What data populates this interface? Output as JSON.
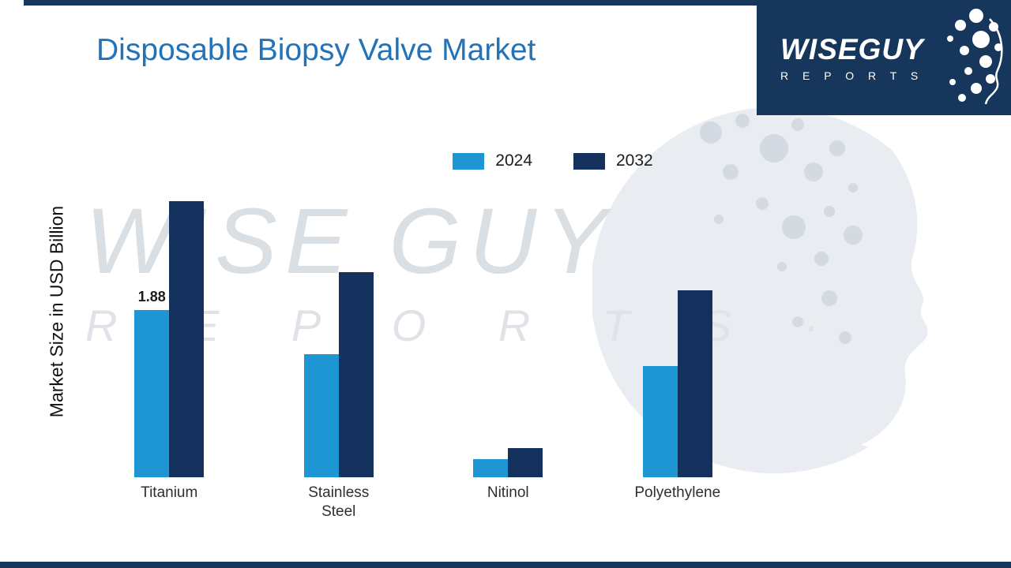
{
  "page": {
    "title": "Disposable Biopsy Valve Market"
  },
  "brand": {
    "name": "WISEGUY",
    "subtitle": "R E P O R T S"
  },
  "watermark": {
    "line1": "WISE GUY",
    "line2": "R E P O R T S ·"
  },
  "colors": {
    "title": "#2273b9",
    "strip": "#16365c",
    "watermark": "#dadfe4"
  },
  "chart_data": {
    "type": "bar",
    "title": "Disposable Biopsy Valve Market",
    "ylabel": "Market Size in USD Billion",
    "unit": "USD Billion",
    "categories": [
      "Titanium",
      "Stainless Steel",
      "Nitinol",
      "Polyethylene"
    ],
    "series": [
      {
        "name": "2024",
        "color": "#1e96d4",
        "values": [
          1.88,
          1.38,
          0.2,
          1.25
        ]
      },
      {
        "name": "2032",
        "color": "#14305c",
        "values": [
          3.1,
          2.3,
          0.33,
          2.1
        ]
      }
    ],
    "annotations": [
      {
        "series": "2024",
        "category": "Titanium",
        "text": "1.88"
      }
    ],
    "ylim": [
      0,
      3.5
    ],
    "grid": false,
    "legend_position": "top-center"
  }
}
